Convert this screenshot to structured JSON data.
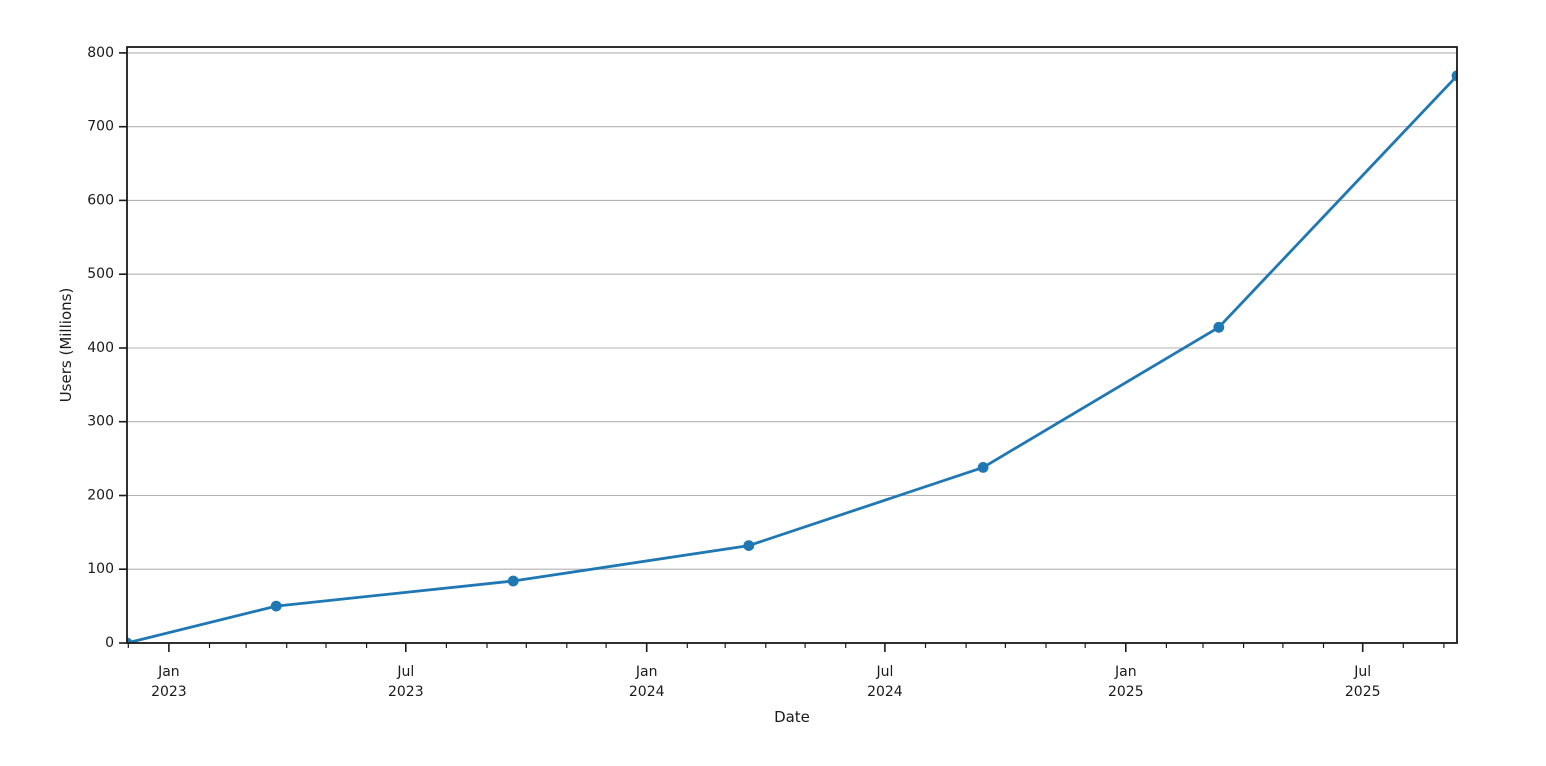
{
  "figure": {
    "background": "#ffffff"
  },
  "chart_data": {
    "type": "line",
    "title": "",
    "xlabel": "Date",
    "ylabel": "Users (Millions)",
    "x": [
      "2022-11-30",
      "2023-03-24",
      "2023-09-21",
      "2024-03-19",
      "2024-09-14",
      "2025-03-13",
      "2025-09-11"
    ],
    "y": [
      0,
      50,
      84,
      132,
      238,
      428,
      769
    ],
    "xlim": [
      "2022-11-30",
      "2025-09-11"
    ],
    "ylim": [
      0,
      808
    ],
    "yticks": [
      0,
      100,
      200,
      300,
      400,
      500,
      600,
      700,
      800
    ],
    "x_major_ticks": [
      {
        "date": "2023-01-01",
        "line1": "Jan",
        "line2": "2023"
      },
      {
        "date": "2023-07-01",
        "line1": "Jul",
        "line2": "2023"
      },
      {
        "date": "2024-01-01",
        "line1": "Jan",
        "line2": "2024"
      },
      {
        "date": "2024-07-01",
        "line1": "Jul",
        "line2": "2024"
      },
      {
        "date": "2025-01-01",
        "line1": "Jan",
        "line2": "2025"
      },
      {
        "date": "2025-07-01",
        "line1": "Jul",
        "line2": "2025"
      }
    ],
    "x_minor_tick_unit": "month",
    "grid": {
      "axis": "y",
      "on": true
    },
    "legend": "none",
    "marker": "circle",
    "colors": {
      "line": "#1f77b4",
      "marker": "#1f77b4",
      "grid": "#b2b2b2",
      "spine": "#1a1a1a",
      "tick": "#1a1a1a",
      "text": "#1a1a1a"
    }
  }
}
